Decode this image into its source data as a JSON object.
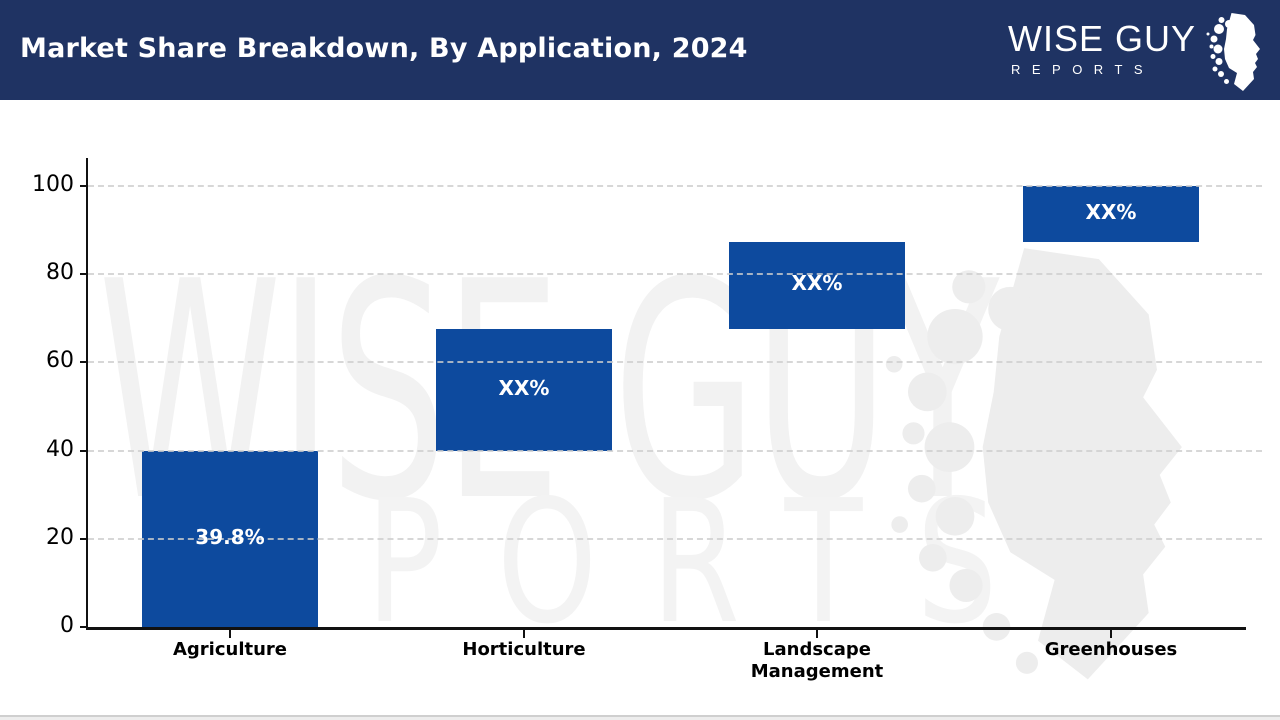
{
  "header": {
    "title": "Market Share Breakdown, By Application, 2024",
    "background_color": "#1f3363",
    "logo": {
      "name": "WISE GUY",
      "tagline": "REPORTS"
    }
  },
  "watermark": {
    "line1": "WISE GUY",
    "line2": "PORTS"
  },
  "chart_data": {
    "type": "bar",
    "subtype": "waterfall",
    "title": "Market Share Breakdown, By Application, 2024",
    "categories": [
      "Agriculture",
      "Horticulture",
      "Landscape Management",
      "Greenhouses"
    ],
    "category_label_lines": [
      [
        "Agriculture"
      ],
      [
        "Horticulture"
      ],
      [
        "Landscape",
        "Management"
      ],
      [
        "Greenhouses"
      ]
    ],
    "bars": [
      {
        "category": "Agriculture",
        "start": 0,
        "end": 39.8,
        "value": 39.8,
        "label": "39.8%"
      },
      {
        "category": "Horticulture",
        "start": 39.8,
        "end": 67.5,
        "value": 27.7,
        "label": "XX%"
      },
      {
        "category": "Landscape Management",
        "start": 67.5,
        "end": 87.4,
        "value": 19.9,
        "label": "XX%"
      },
      {
        "category": "Greenhouses",
        "start": 87.4,
        "end": 100,
        "value": 12.6,
        "label": "XX%"
      }
    ],
    "ylim": [
      0,
      100
    ],
    "yticks": [
      0,
      20,
      40,
      60,
      80,
      100
    ],
    "grid": "horizontal dashed, drawn over bars",
    "legend": "none",
    "bar_color": "#0d4a9e",
    "bar_label_color": "#ffffff",
    "axis_color": "#111111",
    "gridline_color": "#cdcdcd"
  }
}
